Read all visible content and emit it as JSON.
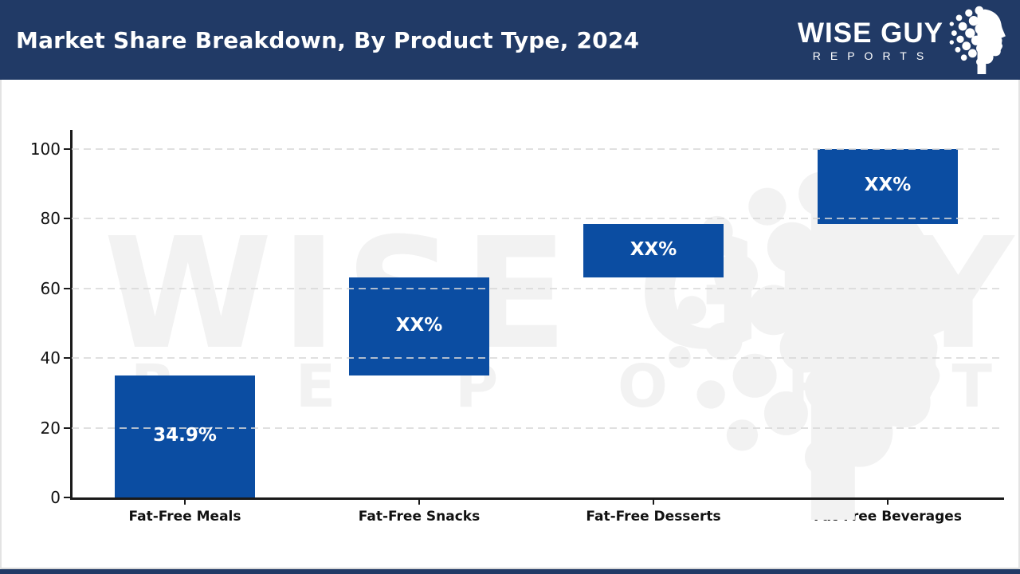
{
  "header": {
    "title": "Market Share Breakdown, By Product Type, 2024",
    "bg_color": "#213A66",
    "text_color": "#ffffff",
    "logo": {
      "line1": "WISE GUY",
      "line2": "REPORTS"
    }
  },
  "watermark": {
    "line1": "WISE GUY",
    "line2": "R E P O R T S",
    "color": "#f2f2f2"
  },
  "footer": {
    "bg_color": "#213A66"
  },
  "chart_data": {
    "type": "bar",
    "subtype": "waterfall-floating-bars",
    "title": "Market Share Breakdown, By Product Type, 2024",
    "categories": [
      "Fat-Free Meals",
      "Fat-Free Snacks",
      "Fat-Free Desserts",
      "Fat-Free Beverages"
    ],
    "bars": [
      {
        "category": "Fat-Free Meals",
        "start": 0,
        "end": 34.9,
        "label": "34.9%"
      },
      {
        "category": "Fat-Free Snacks",
        "start": 34.9,
        "end": 63.1,
        "label": "XX%"
      },
      {
        "category": "Fat-Free Desserts",
        "start": 63.1,
        "end": 78.4,
        "label": "XX%"
      },
      {
        "category": "Fat-Free Beverages",
        "start": 78.4,
        "end": 100,
        "label": "XX%"
      }
    ],
    "yticks": [
      0,
      20,
      40,
      60,
      80,
      100
    ],
    "ylim": [
      0,
      105.5
    ],
    "xlabel": "",
    "ylabel": "",
    "grid": "horizontal-dashed",
    "grid_color": "#d8d8d8",
    "bar_color": "#0B4DA2",
    "bar_label_color": "#ffffff",
    "axis_color": "#1a1a1a",
    "legend": "none"
  }
}
